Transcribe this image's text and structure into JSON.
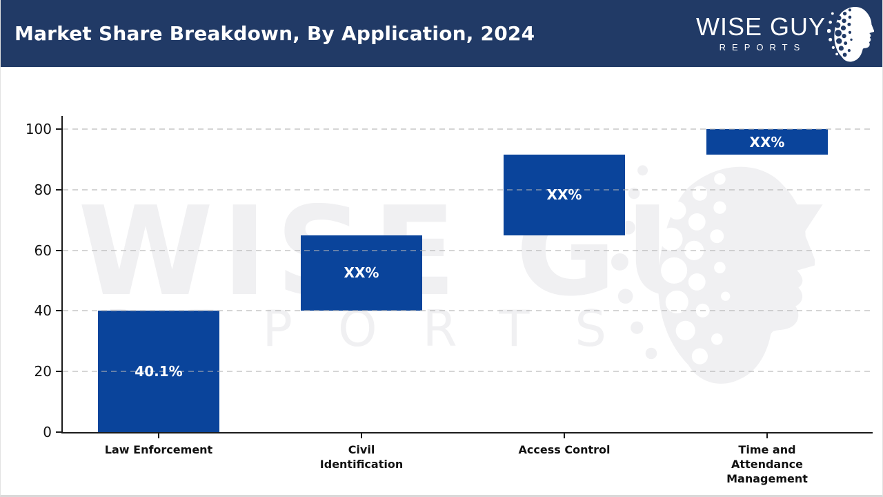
{
  "header": {
    "title": "Market Share Breakdown, By Application, 2024",
    "brand": {
      "name": "WISE GUY",
      "sub": "REPORTS"
    }
  },
  "watermark": {
    "line1": "WISE GUY",
    "line2": "REPORTS"
  },
  "chart_data": {
    "type": "bar",
    "subtype": "waterfall",
    "title": "Market Share Breakdown, By Application, 2024",
    "categories": [
      "Law Enforcement",
      "Civil\nIdentification",
      "Access Control",
      "Time and\nAttendance\nManagement"
    ],
    "segments": [
      {
        "category": "Law Enforcement",
        "start": 0,
        "end": 40.1,
        "label": "40.1%"
      },
      {
        "category": "Civil Identification",
        "start": 40.1,
        "end": 65,
        "label": "XX%"
      },
      {
        "category": "Access Control",
        "start": 65,
        "end": 91.5,
        "label": "XX%"
      },
      {
        "category": "Time and Attendance Management",
        "start": 91.5,
        "end": 100,
        "label": "XX%"
      }
    ],
    "xlabel": "",
    "ylabel": "",
    "ylim": [
      0,
      100
    ],
    "yticks": [
      0,
      20,
      40,
      60,
      80,
      100
    ],
    "grid": "horizontal-dashed",
    "legend": "none",
    "bar_color": "#0A449B",
    "bar_label_color": "#ffffff"
  }
}
